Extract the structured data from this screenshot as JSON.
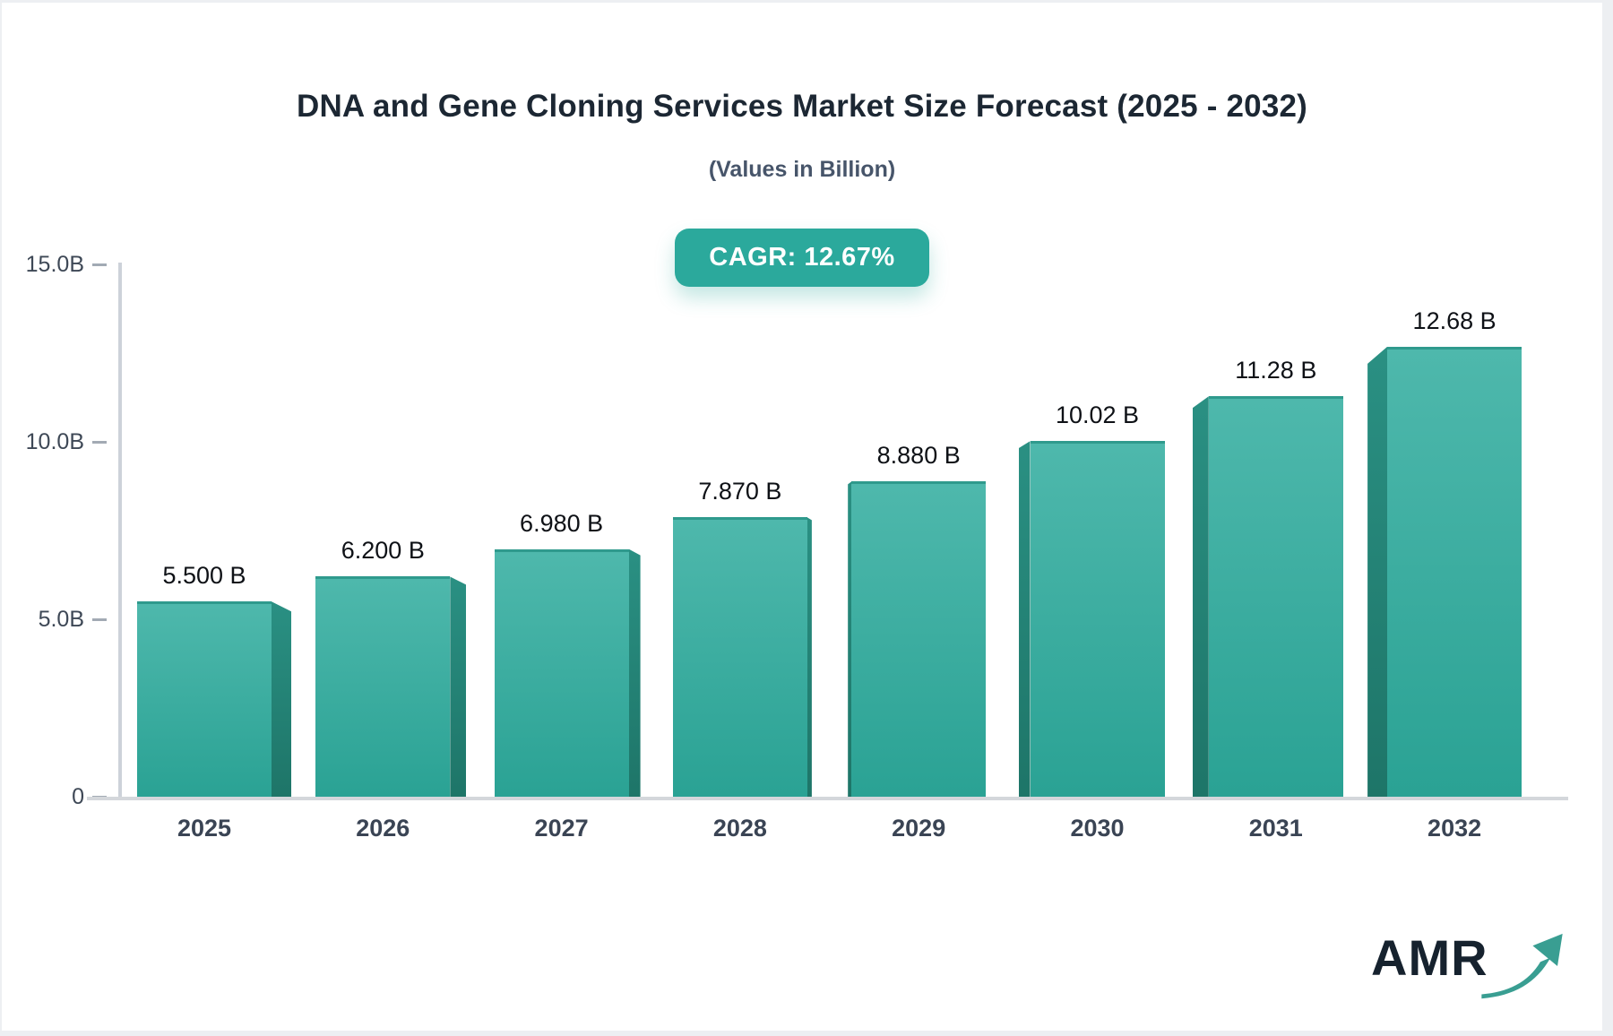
{
  "header": {
    "title": "DNA and Gene Cloning Services Market Size Forecast (2025 - 2032)",
    "subtitle": "(Values in Billion)"
  },
  "badge": {
    "label": "CAGR: 12.67%",
    "background": "#2ba99c",
    "text_color": "#ffffff"
  },
  "chart_data": {
    "type": "bar",
    "title": "DNA and Gene Cloning Services Market Size Forecast (2025 - 2032)",
    "subtitle": "(Values in Billion)",
    "categories": [
      "2025",
      "2026",
      "2027",
      "2028",
      "2029",
      "2030",
      "2031",
      "2032"
    ],
    "values": [
      5.5,
      6.2,
      6.98,
      7.87,
      8.88,
      10.02,
      11.28,
      12.68
    ],
    "value_labels": [
      "5.500 B",
      "6.200 B",
      "6.980 B",
      "7.870 B",
      "8.880 B",
      "10.02 B",
      "11.28 B",
      "12.68 B"
    ],
    "xlabel": "",
    "ylabel": "",
    "ylim": [
      0,
      15
    ],
    "yticks": [
      {
        "value": 0,
        "label": "0"
      },
      {
        "value": 5,
        "label": "5.0B"
      },
      {
        "value": 10,
        "label": "10.0B"
      },
      {
        "value": 15,
        "label": "15.0B"
      }
    ],
    "grid": false,
    "legend": false,
    "bar_color_top": "#4eb8ac",
    "bar_color_bottom": "#2aa294",
    "bar_side_color_top": "#2a9083",
    "bar_side_color_bottom": "#1e7568",
    "cagr_annotation": "CAGR: 12.67%"
  },
  "logo": {
    "text": "AMR",
    "arrow_icon": "growth-arrow-icon",
    "text_color": "#16222e",
    "arrow_color": "#399e92"
  }
}
